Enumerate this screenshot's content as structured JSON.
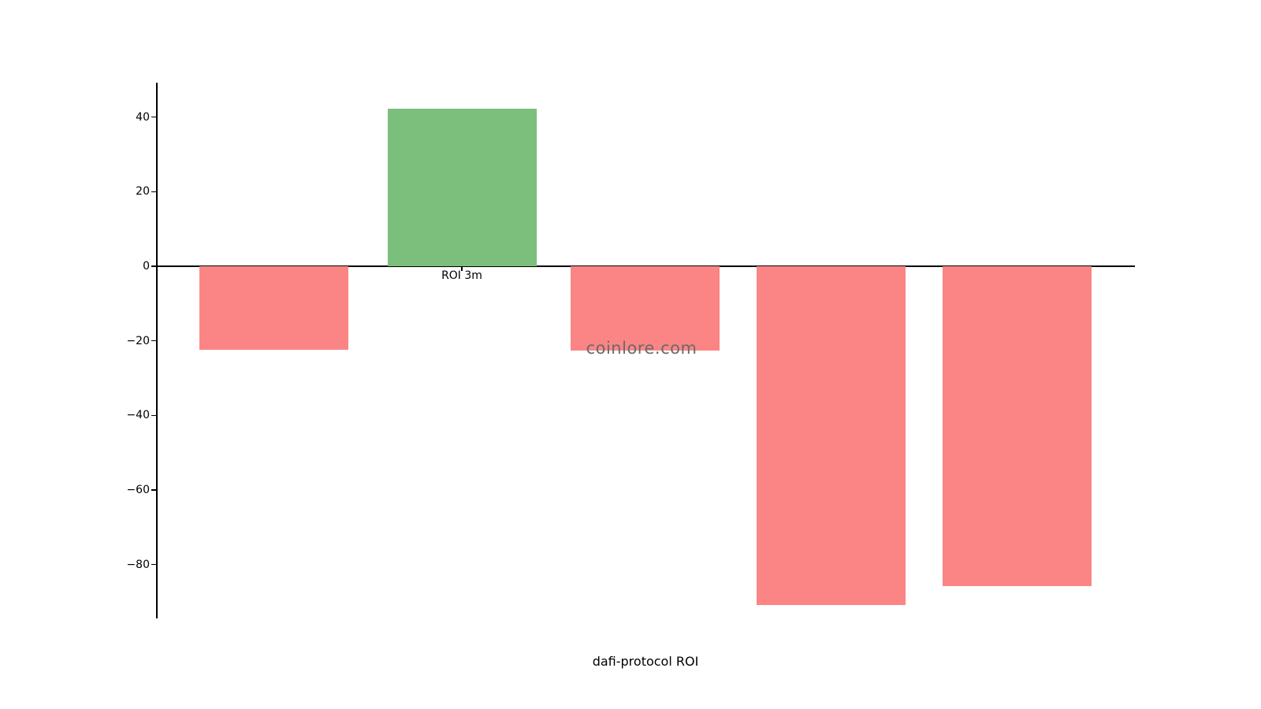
{
  "page": {
    "background": "#ffffff"
  },
  "chart_data": {
    "type": "bar",
    "title": "",
    "xlabel": "dafi-protocol ROI",
    "ylabel": "",
    "watermark": "coinlore.com",
    "categories": [
      "",
      "ROI 3m",
      "",
      "",
      ""
    ],
    "values": [
      -22.3,
      42.3,
      -22.6,
      -90.9,
      -85.7
    ],
    "bar_colors": [
      "#fb8585",
      "#7cbf7d",
      "#fb8585",
      "#fb8585",
      "#fb8585"
    ],
    "positive_color": "#7cbf7d",
    "negative_color": "#fb8585",
    "yticks": {
      "values": [
        40,
        20,
        0,
        -20,
        -40,
        -60,
        -80
      ],
      "labels": [
        "40",
        "20",
        "0",
        "−20",
        "−40",
        "−60",
        "−80"
      ]
    },
    "ylim": [
      -94.5,
      49.3
    ],
    "grid": false,
    "legend": null
  }
}
